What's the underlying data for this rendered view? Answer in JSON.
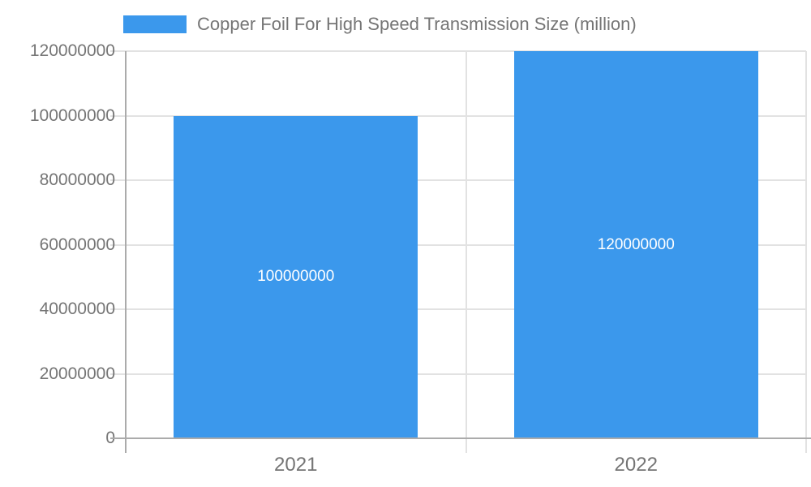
{
  "legend": {
    "label": "Copper Foil For High Speed Transmission Size (million)"
  },
  "chart_data": {
    "type": "bar",
    "title": "Copper Foil For High Speed Transmission Size (million)",
    "categories": [
      "2021",
      "2022"
    ],
    "values": [
      100000000,
      120000000
    ],
    "bar_labels": [
      "100000000",
      "120000000"
    ],
    "xlabel": "",
    "ylabel": "",
    "ylim": [
      0,
      120000000
    ],
    "yticks": [
      0,
      20000000,
      40000000,
      60000000,
      80000000,
      100000000,
      120000000
    ],
    "ytick_labels": [
      "0",
      "20000000",
      "40000000",
      "60000000",
      "80000000",
      "100000000",
      "120000000"
    ],
    "grid": true,
    "legend_position": "top-left",
    "colors": {
      "bar": "#3B98EC",
      "text": "#757575",
      "grid": "#e2e2e2",
      "axis": "#ababab",
      "bar_label": "#ffffff",
      "background": "#ffffff"
    }
  }
}
